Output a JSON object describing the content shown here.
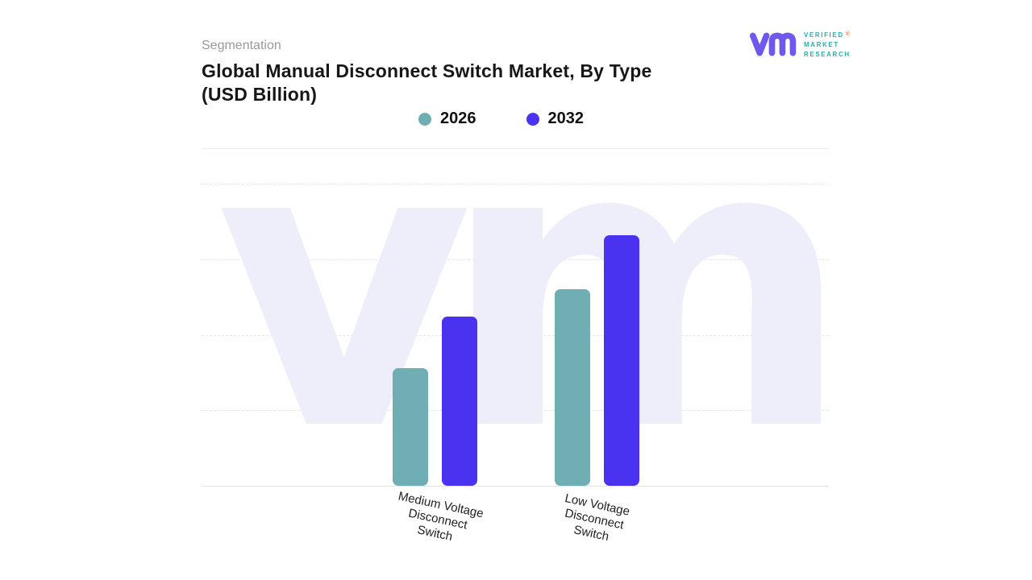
{
  "header": {
    "eyebrow": "Segmentation",
    "title_line1": "Global Manual Disconnect Switch Market, By Type",
    "title_line2": "(USD Billion)"
  },
  "logo": {
    "monogram": "vm",
    "monogram_color": "#6F58EE",
    "lines": [
      "VERIFIED",
      "MARKET",
      "RESEARCH"
    ],
    "reg": "®",
    "reg_color": "#F5822A",
    "text_color": "#27B0A8"
  },
  "legend": {
    "items": [
      {
        "label": "2026",
        "color": "#6FAEB2"
      },
      {
        "label": "2032",
        "color": "#4A33F0"
      }
    ]
  },
  "chart_data": {
    "type": "bar",
    "title": "Global Manual Disconnect Switch Market, By Type (USD Billion)",
    "categories": [
      "Medium Voltage Disconnect Switch",
      "Low Voltage Disconnect Switch"
    ],
    "series": [
      {
        "name": "2026",
        "color": "#6FAEB2",
        "values": [
          3.9,
          6.5
        ]
      },
      {
        "name": "2032",
        "color": "#4A33F0",
        "values": [
          5.6,
          8.3
        ]
      }
    ],
    "xlabel": "",
    "ylabel": "",
    "ylim": [
      0,
      10
    ],
    "grid": "horizontal-dashed",
    "legend_position": "top-center",
    "value_note": "Y-axis has no tick labels in source image; values estimated from relative bar heights"
  },
  "xaxis": {
    "labels": [
      {
        "lines": [
          "Medium Voltage",
          "Disconnect",
          "Switch"
        ]
      },
      {
        "lines": [
          "Low Voltage",
          "Disconnect",
          "Switch"
        ]
      }
    ]
  },
  "watermark": {
    "text": "vm",
    "color": "#EDEEFA"
  }
}
